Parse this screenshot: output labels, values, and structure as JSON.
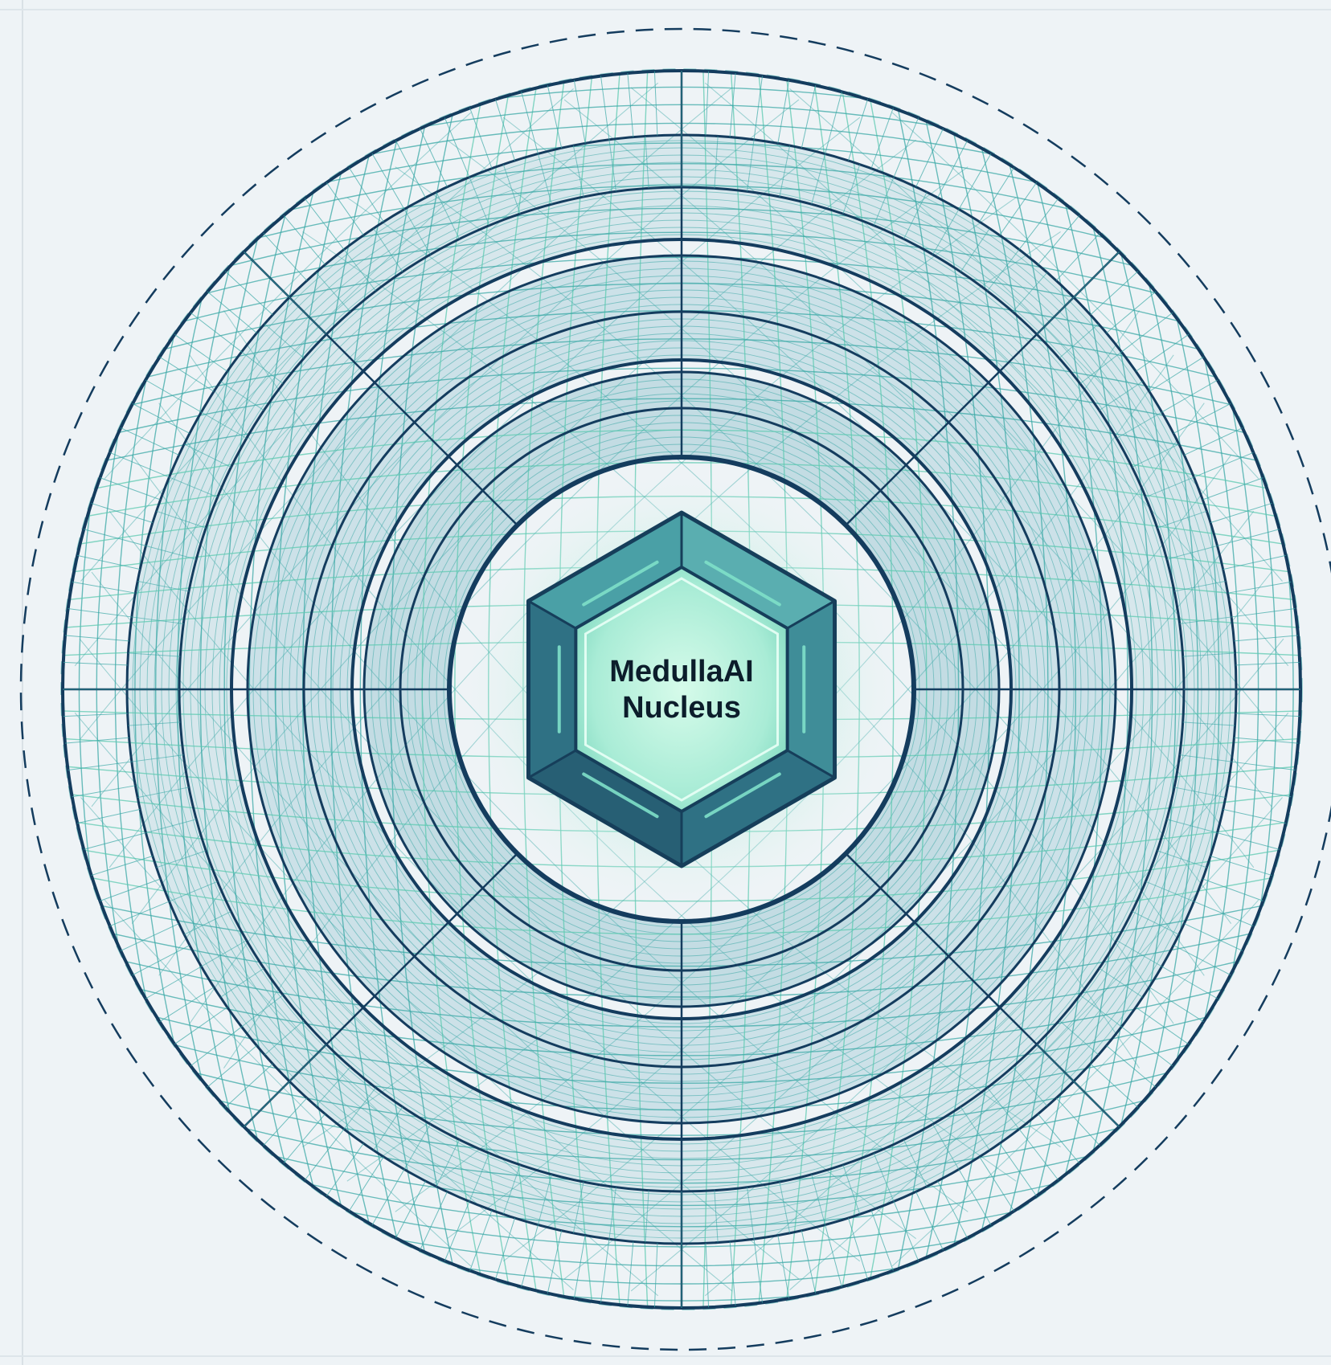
{
  "diagram": {
    "center_label_line1": "MedullaAI",
    "center_label_line2": "Nucleus"
  },
  "colors": {
    "background": "#eef3f6",
    "navy": "#143c5e",
    "teal": "#3aa8a6",
    "mint": "#7fe0c9",
    "band_fill": "#7fb9c6",
    "hex_face": "#3c8c94",
    "hex_inner": "#9be6cf",
    "text": "#0c1d2b"
  }
}
